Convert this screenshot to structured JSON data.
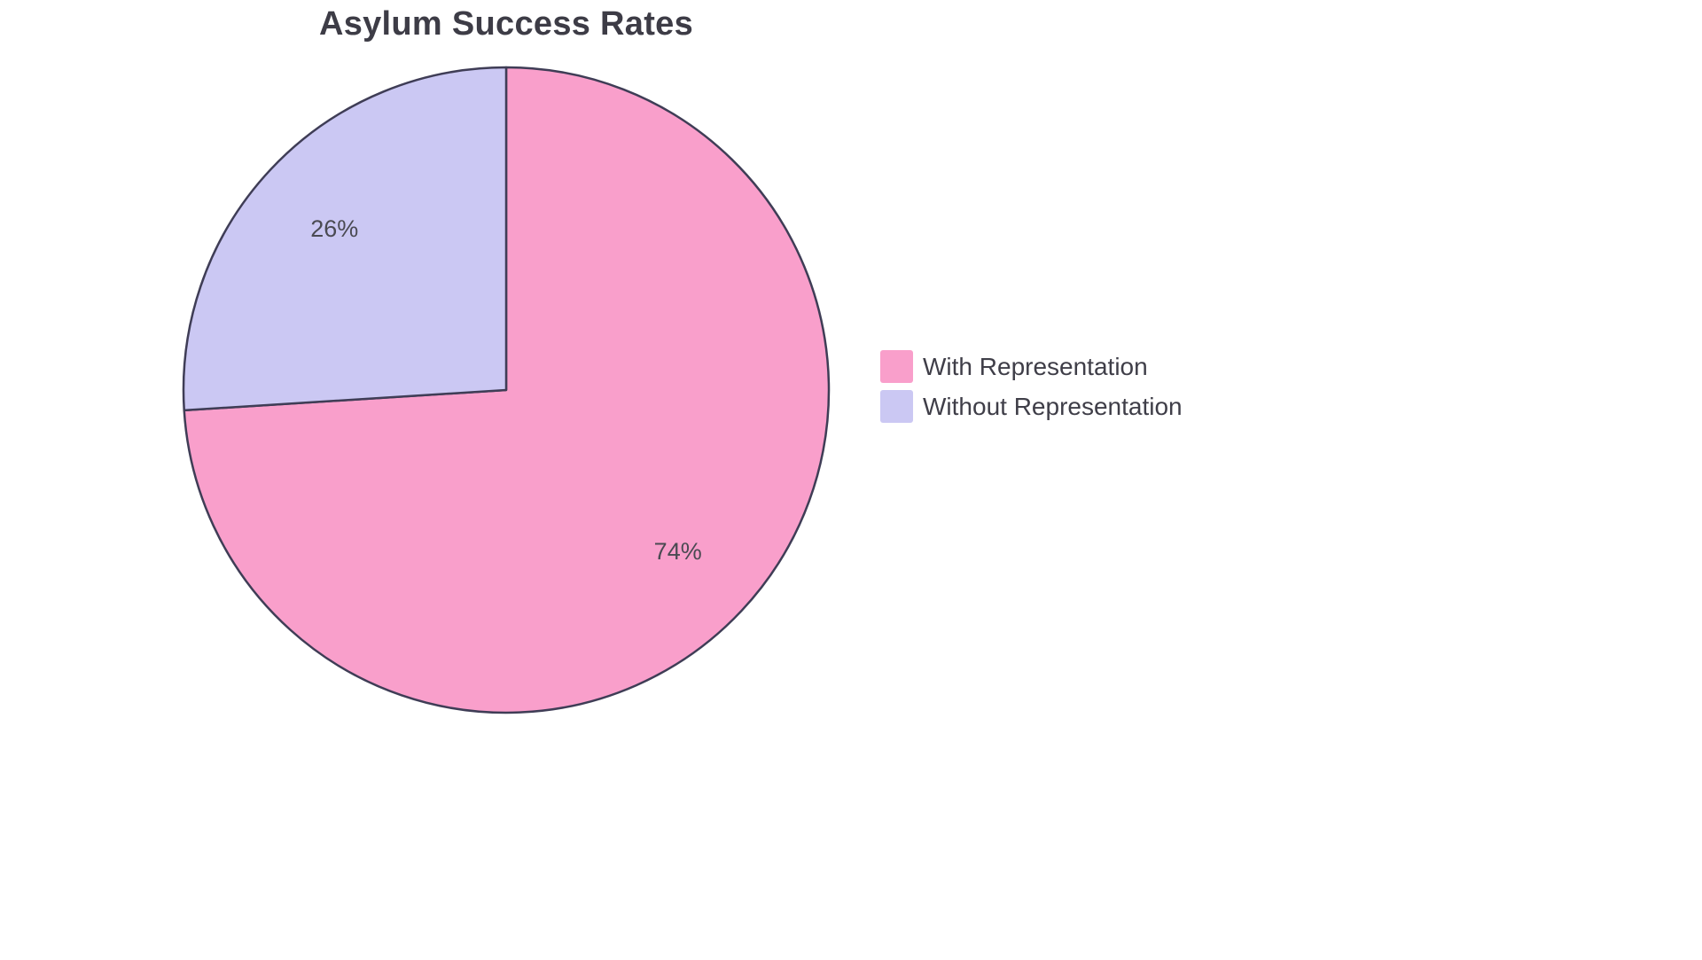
{
  "chart_data": {
    "type": "pie",
    "title": "Asylum Success Rates",
    "labels": [
      "With Representation",
      "Without Representation"
    ],
    "values": [
      74,
      26
    ],
    "value_labels": [
      "74%",
      "26%"
    ],
    "colors": [
      "#F99FCB",
      "#CBC8F3"
    ],
    "stroke_color": "#3f3d56",
    "label_color": "#4a4a52",
    "start_angle_deg": 0,
    "direction": "clockwise",
    "legend_position": "right"
  },
  "legend": {
    "items": [
      {
        "label": "With Representation",
        "color": "#F99FCB"
      },
      {
        "label": "Without Representation",
        "color": "#CBC8F3"
      }
    ]
  }
}
